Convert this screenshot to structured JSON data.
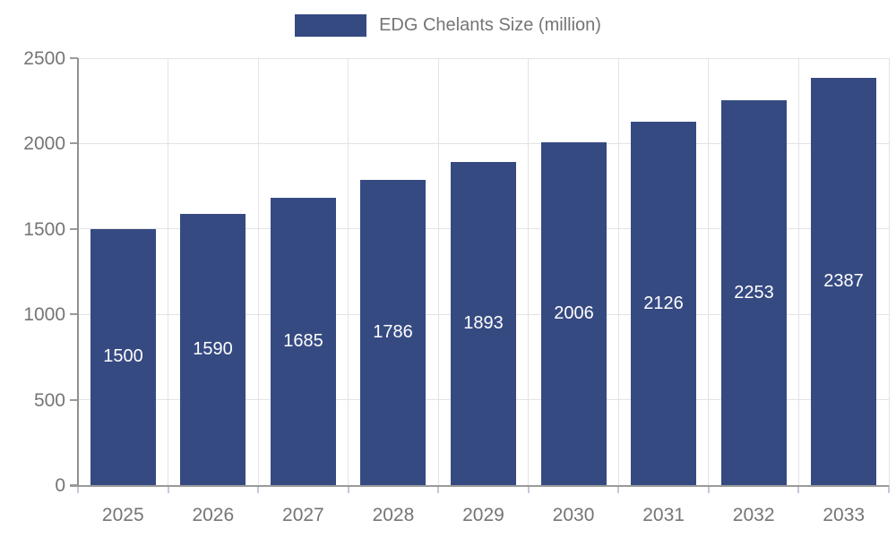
{
  "chart_data": {
    "type": "bar",
    "title": "EDG Chelants Size (million)",
    "legend": [
      "EDG Chelants Size (million)"
    ],
    "legend_position": "top",
    "categories": [
      "2025",
      "2026",
      "2027",
      "2028",
      "2029",
      "2030",
      "2031",
      "2032",
      "2033"
    ],
    "series": [
      {
        "name": "EDG Chelants Size (million)",
        "values": [
          1500,
          1590,
          1685,
          1786,
          1893,
          2006,
          2126,
          2253,
          2387
        ]
      }
    ],
    "bar_labels": [
      1500,
      1590,
      1685,
      1786,
      1893,
      2006,
      2126,
      2253,
      2387
    ],
    "bar_label_position": "inside-center",
    "xlabel": "",
    "ylabel": "",
    "ylim": [
      0,
      2500
    ],
    "yticks": [
      0,
      500,
      1000,
      1500,
      2000,
      2500
    ],
    "grid": true,
    "colors": {
      "bar": "#364a82",
      "bar_label": "#ffffff",
      "axis_text": "#757575",
      "legend_text": "#757575",
      "gridline": "#e3e3e3",
      "axis_line": "#9a9a9a",
      "x_tick": "#c3c9da",
      "background": "#ffffff"
    }
  }
}
